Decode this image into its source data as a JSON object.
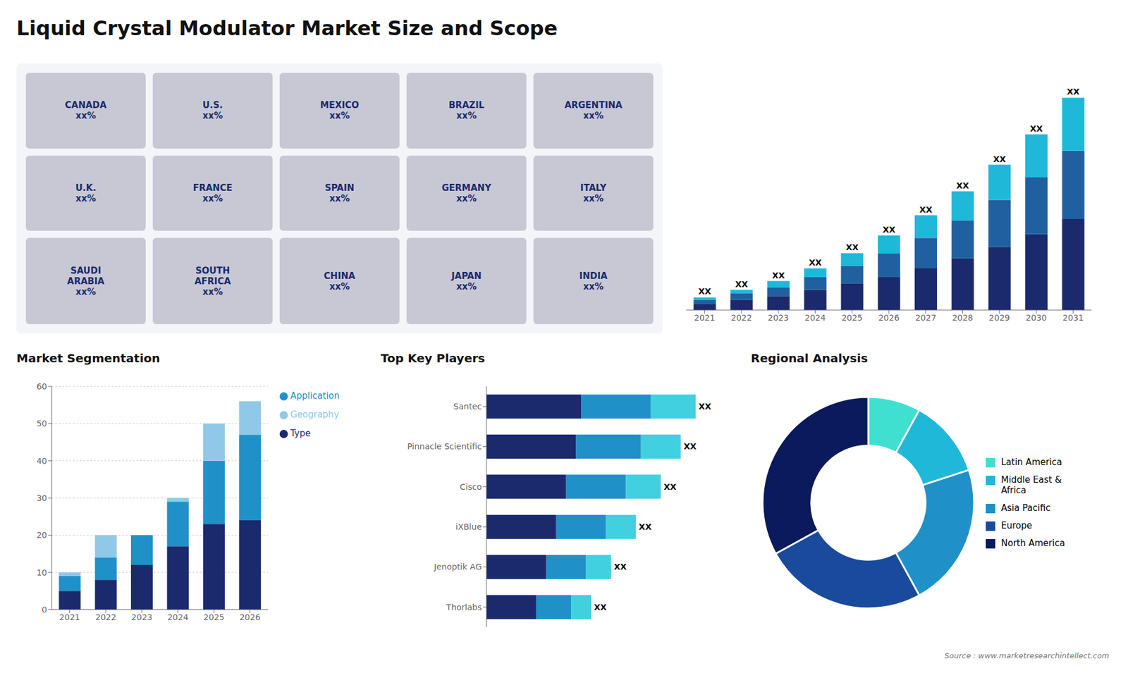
{
  "title": "Liquid Crystal Modulator Market Size and Scope",
  "annotations": [
    "Source : www.marketresearchintellect.com"
  ],
  "chart_data": [
    {
      "type": "map",
      "annotations": [
        "CANADA\nxx%",
        "U.S.\nxx%",
        "MEXICO\nxx%",
        "BRAZIL\nxx%",
        "ARGENTINA\nxx%",
        "U.K.\nxx%",
        "FRANCE\nxx%",
        "SPAIN\nxx%",
        "GERMANY\nxx%",
        "ITALY\nxx%",
        "SAUDI\nARABIA\nxx%",
        "SOUTH\nAFRICA\nxx%",
        "CHINA\nxx%",
        "JAPAN\nxx%",
        "INDIA\nxx%"
      ]
    },
    {
      "type": "bar",
      "stacked": true,
      "categories": [
        "2021",
        "2022",
        "2023",
        "2024",
        "2025",
        "2026",
        "2027",
        "2028",
        "2029",
        "2030",
        "2031"
      ],
      "series": [
        {
          "color": "#1a2a6c",
          "values": [
            2.5,
            4.0,
            5.5,
            8.0,
            10.5,
            13.0,
            16.5,
            20.5,
            25.0,
            30.0,
            36.0
          ]
        },
        {
          "color": "#2060a0",
          "values": [
            1.5,
            2.5,
            3.5,
            5.0,
            7.0,
            9.5,
            12.0,
            15.0,
            18.5,
            22.5,
            27.0
          ]
        },
        {
          "color": "#20b8d8",
          "values": [
            1.0,
            1.5,
            2.5,
            3.5,
            5.0,
            7.0,
            9.0,
            11.5,
            14.0,
            17.0,
            21.0
          ]
        }
      ],
      "annotations": [
        "XX",
        "XX",
        "XX",
        "XX",
        "XX",
        "XX",
        "XX",
        "XX",
        "XX",
        "XX",
        "XX"
      ],
      "ylim": [
        0,
        92
      ],
      "tick_labels": "x"
    },
    {
      "type": "bar",
      "stacked": true,
      "title": "Market Segmentation",
      "categories": [
        "2021",
        "2022",
        "2023",
        "2024",
        "2025",
        "2026"
      ],
      "series": [
        {
          "name": "Type",
          "color": "#1a2a6c",
          "values": [
            5,
            8,
            12,
            17,
            23,
            24
          ]
        },
        {
          "name": "Application",
          "color": "#2090c8",
          "values": [
            4,
            6,
            8,
            12,
            17,
            23
          ]
        },
        {
          "name": "Geography",
          "color": "#90c8e8",
          "values": [
            1,
            6,
            0,
            1,
            10,
            9
          ]
        }
      ],
      "ylim": [
        0,
        60
      ],
      "yticks": [
        0,
        10,
        20,
        30,
        40,
        50,
        60
      ],
      "grid": true,
      "legend": "right"
    },
    {
      "type": "bar",
      "stacked": true,
      "orientation": "horizontal",
      "title": "Top Key Players",
      "categories": [
        "Santec",
        "Pinnacle Scientific",
        "Cisco",
        "iXBlue",
        "Jenoptik AG",
        "Thorlabs"
      ],
      "series": [
        {
          "color": "#1a2a6c",
          "values": [
            38,
            36,
            32,
            28,
            24,
            20
          ]
        },
        {
          "color": "#2090c8",
          "values": [
            28,
            26,
            24,
            20,
            16,
            14
          ]
        },
        {
          "color": "#40d0e0",
          "values": [
            18,
            16,
            14,
            12,
            10,
            8
          ]
        }
      ],
      "annotations": [
        "XX",
        "XX",
        "XX",
        "XX",
        "XX",
        "XX"
      ],
      "xlim": [
        0,
        92
      ],
      "tick_labels": "y"
    },
    {
      "type": "pie",
      "title": "Regional Analysis",
      "categories": [
        "Latin America",
        "Middle East &\nAfrica",
        "Asia Pacific",
        "Europe",
        "North America"
      ],
      "values": [
        8,
        12,
        22,
        25,
        33
      ],
      "colors": [
        "#40e0d0",
        "#20b8d8",
        "#2090c8",
        "#1a4a9c",
        "#0a1a5c"
      ],
      "legend": "right"
    }
  ]
}
